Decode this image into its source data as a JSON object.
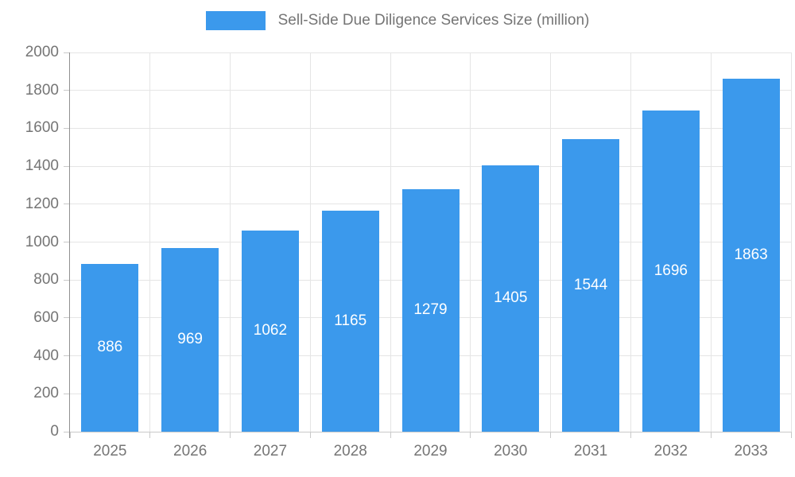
{
  "chart_data": {
    "type": "bar",
    "title": "Sell-Side Due Diligence Services Size (million)",
    "categories": [
      "2025",
      "2026",
      "2027",
      "2028",
      "2029",
      "2030",
      "2031",
      "2032",
      "2033"
    ],
    "values": [
      886,
      969,
      1062,
      1165,
      1279,
      1405,
      1544,
      1696,
      1863
    ],
    "xlabel": "",
    "ylabel": "",
    "ylim": [
      0,
      2000
    ],
    "ytick_step": 200,
    "grid": true,
    "legend_position": "top",
    "value_labels": "inside-center"
  },
  "colors": {
    "bar": "#3B99EC",
    "value_text": "#ffffff",
    "axis_text": "#757575",
    "grid_line": "#e5e5e5",
    "axis_line_y": "#909090",
    "axis_line_x": "#c9c9c9",
    "background": "#ffffff"
  }
}
